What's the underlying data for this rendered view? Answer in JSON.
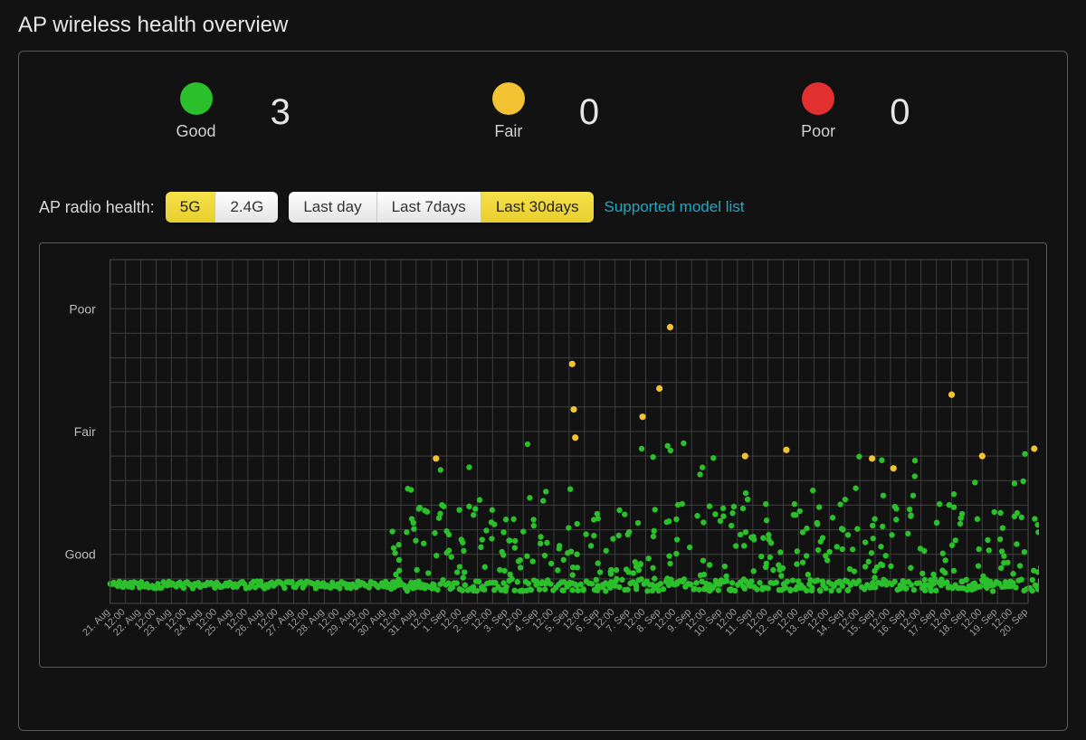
{
  "title": "AP wireless health overview",
  "status": {
    "items": [
      {
        "key": "good",
        "label": "Good",
        "value": 3,
        "color": "#2bbf2b"
      },
      {
        "key": "fair",
        "label": "Fair",
        "value": 0,
        "color": "#f2c233"
      },
      {
        "key": "poor",
        "label": "Poor",
        "value": 0,
        "color": "#e23030"
      }
    ]
  },
  "filters": {
    "label": "AP radio health:",
    "band": {
      "options": [
        "5G",
        "2.4G"
      ],
      "active": "5G"
    },
    "period": {
      "options": [
        "Last day",
        "Last 7days",
        "Last 30days"
      ],
      "active": "Last 30days"
    },
    "link_text": "Supported model list"
  },
  "chart": {
    "type": "scatter",
    "background": "#121212",
    "grid_color": "#3e3e3e",
    "y_levels": [
      {
        "key": "poor",
        "label": "Poor",
        "y": 2.0
      },
      {
        "key": "fair",
        "label": "Fair",
        "y": 1.0
      },
      {
        "key": "good",
        "label": "Good",
        "y": 0.0
      }
    ],
    "ylim": [
      -0.4,
      2.4
    ],
    "x_labels": [
      "21. Aug",
      "12:00",
      "22. Aug",
      "12:00",
      "23. Aug",
      "12:00",
      "24. Aug",
      "12:00",
      "25. Aug",
      "12:00",
      "26. Aug",
      "12:00",
      "27. Aug",
      "12:00",
      "28. Aug",
      "12:00",
      "29. Aug",
      "12:00",
      "30. Aug",
      "12:00",
      "31. Aug",
      "12:00",
      "1. Sep",
      "12:00",
      "2. Sep",
      "12:00",
      "3. Sep",
      "12:00",
      "4. Sep",
      "12:00",
      "5. Sep",
      "12:00",
      "6. Sep",
      "12:00",
      "7. Sep",
      "12:00",
      "8. Sep",
      "12:00",
      "9. Sep",
      "12:00",
      "10. Sep",
      "12:00",
      "11. Sep",
      "12:00",
      "12. Sep",
      "12:00",
      "13. Sep",
      "12:00",
      "14. Sep",
      "12:00",
      "15. Sep",
      "12:00",
      "16. Sep",
      "12:00",
      "17. Sep",
      "12:00",
      "18. Sep",
      "12:00",
      "19. Sep",
      "12:00",
      "20. Sep"
    ],
    "marker_radius": 3.2,
    "colors": {
      "good": "#2bbf2b",
      "fair": "#f2c233"
    },
    "baseline_fill_until_x": 20.5,
    "scatter_start_x": 18.0,
    "random_seed": 424242,
    "green_density_per_halfday": 10,
    "green_max_y": 0.55,
    "green_burst_prob": 0.2,
    "green_burst_max_y": 0.95,
    "yellow_points": [
      [
        21.3,
        0.78
      ],
      [
        30.2,
        1.55
      ],
      [
        30.3,
        1.18
      ],
      [
        30.4,
        0.95
      ],
      [
        34.8,
        1.12
      ],
      [
        36.6,
        1.85
      ],
      [
        35.9,
        1.35
      ],
      [
        41.5,
        0.8
      ],
      [
        44.2,
        0.85
      ],
      [
        49.8,
        0.78
      ],
      [
        51.2,
        0.7
      ],
      [
        55.0,
        1.3
      ],
      [
        57.0,
        0.8
      ],
      [
        60.4,
        0.86
      ]
    ]
  }
}
